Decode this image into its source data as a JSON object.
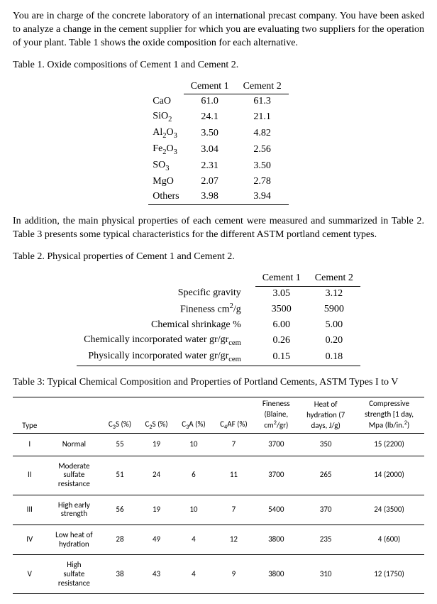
{
  "intro": "You are in charge of the concrete laboratory of an international precast company. You have been asked to analyze a change in the cement supplier for which you are evaluating two suppliers for the operation of your plant. Table 1 shows the oxide composition for each alternative.",
  "table1": {
    "caption": "Table 1. Oxide compositions of Cement 1 and Cement 2.",
    "headers": [
      "Cement 1",
      "Cement 2"
    ],
    "rows": [
      {
        "label": "CaO",
        "c1": "61.0",
        "c2": "61.3"
      },
      {
        "label": "SiO₂",
        "c1": "24.1",
        "c2": "21.1"
      },
      {
        "label": "Al₂O₃",
        "c1": "3.50",
        "c2": "4.82"
      },
      {
        "label": "Fe₂O₃",
        "c1": "3.04",
        "c2": "2.56"
      },
      {
        "label": "SO₃",
        "c1": "2.31",
        "c2": "3.50"
      },
      {
        "label": "MgO",
        "c1": "2.07",
        "c2": "2.78"
      },
      {
        "label": "Others",
        "c1": "3.98",
        "c2": "3.94"
      }
    ]
  },
  "mid1": "In addition, the main physical properties of each cement were measured and summarized in Table 2. Table 3 presents some typical characteristics for the different ASTM portland cement types.",
  "table2": {
    "caption": "Table 2. Physical properties of Cement 1 and Cement 2.",
    "headers": [
      "Cement 1",
      "Cement 2"
    ],
    "rows": [
      {
        "label": "Specific gravity",
        "c1": "3.05",
        "c2": "3.12"
      },
      {
        "label": "Fineness cm²/g",
        "c1": "3500",
        "c2": "5900"
      },
      {
        "label": "Chemical shrinkage %",
        "c1": "6.00",
        "c2": "5.00"
      },
      {
        "label": "Chemically incorporated water gr/gr_cem",
        "c1": "0.26",
        "c2": "0.20"
      },
      {
        "label": "Physically incorporated water gr/gr_cem",
        "c1": "0.15",
        "c2": "0.18"
      }
    ]
  },
  "table3": {
    "caption": "Table 3: Typical Chemical Composition and Properties of Portland Cements, ASTM Types I to V",
    "headers": {
      "type": "Type",
      "desc": "",
      "c3s": "C₃S (%)",
      "c2s": "C₂S (%)",
      "c3a": "C₃A (%)",
      "c4af": "C₄AF (%)",
      "fineness": "Fineness (Blaine, cm²/gr)",
      "heat": "Heat of hydration (7 days, J/g)",
      "strength": "Compressive strength [1 day, Mpa (lb/in.²)"
    },
    "rows": [
      {
        "type": "I",
        "desc": "Normal",
        "c3s": "55",
        "c2s": "19",
        "c3a": "10",
        "c4af": "7",
        "fineness": "3700",
        "heat": "350",
        "strength": "15 (2200)"
      },
      {
        "type": "II",
        "desc": "Moderate sulfate resistance",
        "c3s": "51",
        "c2s": "24",
        "c3a": "6",
        "c4af": "11",
        "fineness": "3700",
        "heat": "265",
        "strength": "14 (2000)"
      },
      {
        "type": "III",
        "desc": "High early strength",
        "c3s": "56",
        "c2s": "19",
        "c3a": "10",
        "c4af": "7",
        "fineness": "5400",
        "heat": "370",
        "strength": "24 (3500)"
      },
      {
        "type": "IV",
        "desc": "Low heat of hydration",
        "c3s": "28",
        "c2s": "49",
        "c3a": "4",
        "c4af": "12",
        "fineness": "3800",
        "heat": "235",
        "strength": "4 (600)"
      },
      {
        "type": "V",
        "desc": "High sulfate resistance",
        "c3s": "38",
        "c2s": "43",
        "c3a": "4",
        "c4af": "9",
        "fineness": "3800",
        "heat": "310",
        "strength": "12 (1750)"
      }
    ]
  }
}
